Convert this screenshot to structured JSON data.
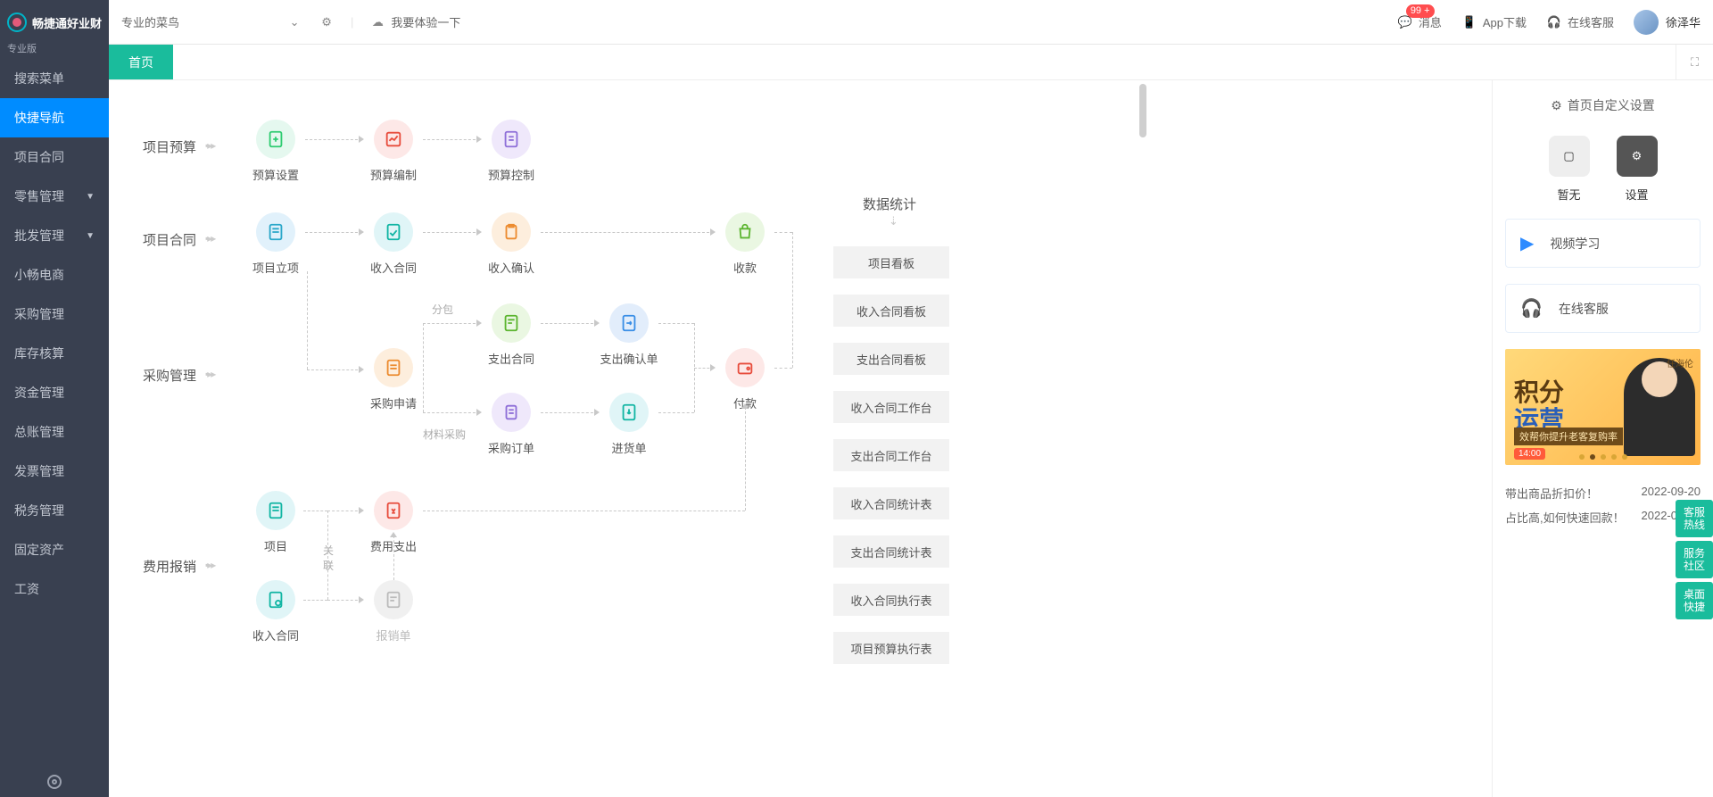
{
  "brand": {
    "name": "畅捷通好业财",
    "edition": "专业版"
  },
  "topbar": {
    "selector": "专业的菜鸟",
    "experience": "我要体验一下",
    "msg": "消息",
    "msg_badge": "99 +",
    "app": "App下载",
    "cs": "在线客服",
    "user": "徐泽华"
  },
  "sidebar": {
    "items": [
      {
        "label": "搜索菜单",
        "chev": false
      },
      {
        "label": "快捷导航",
        "chev": false,
        "active": true
      },
      {
        "label": "项目合同",
        "chev": false
      },
      {
        "label": "零售管理",
        "chev": true
      },
      {
        "label": "批发管理",
        "chev": true
      },
      {
        "label": "小畅电商",
        "chev": false
      },
      {
        "label": "采购管理",
        "chev": false
      },
      {
        "label": "库存核算",
        "chev": false
      },
      {
        "label": "资金管理",
        "chev": false
      },
      {
        "label": "总账管理",
        "chev": false
      },
      {
        "label": "发票管理",
        "chev": false
      },
      {
        "label": "税务管理",
        "chev": false
      },
      {
        "label": "固定资产",
        "chev": false
      },
      {
        "label": "工资",
        "chev": false
      }
    ]
  },
  "tab": {
    "home": "首页"
  },
  "flow": {
    "section1": "项目预算",
    "section2": "项目合同",
    "section3": "采购管理",
    "section4": "费用报销",
    "n_budget_set": "预算设置",
    "n_budget_make": "预算编制",
    "n_budget_ctrl": "预算控制",
    "n_proj_new": "项目立项",
    "n_income_ct": "收入合同",
    "n_income_ok": "收入确认",
    "n_recv": "收款",
    "n_expense_ct": "支出合同",
    "n_expense_ok": "支出确认单",
    "n_purch_req": "采购申请",
    "n_purch_order": "采购订单",
    "n_stockin": "进货单",
    "n_pay": "付款",
    "n_project": "项目",
    "n_expense_out": "费用支出",
    "n_income_ct2": "收入合同",
    "n_reimb": "报销单",
    "sub_fenbao": "分包",
    "sub_material": "材料采购",
    "sub_relation": "关\n联",
    "stats_title": "数据统计",
    "stats": [
      "项目看板",
      "收入合同看板",
      "支出合同看板",
      "收入合同工作台",
      "支出合同工作台",
      "收入合同统计表",
      "支出合同统计表",
      "收入合同执行表",
      "项目预算执行表"
    ]
  },
  "right": {
    "title": "首页自定义设置",
    "block_none": "暂无",
    "block_set": "设置",
    "quick_video": "视频学习",
    "quick_cs": "在线客服",
    "promo_big1": "积分",
    "promo_big2": "运营",
    "promo_sub": "效帮你提升老客复购率",
    "promo_time": "14:00",
    "promo_name": "任海伦",
    "news": [
      {
        "t": "带出商品折扣价！",
        "d": "2022-09-20"
      },
      {
        "t": "占比高,如何快速回款！",
        "d": "2022-09-20"
      }
    ]
  },
  "float": {
    "a": "客服\n热线",
    "b": "服务\n社区",
    "c": "桌面\n快捷"
  },
  "colors": {
    "sidebar_bg": "#394050",
    "active": "#008cff",
    "teal": "#1abc9c",
    "green": "#2ecc71",
    "red": "#e74c3c",
    "purple": "#8e6fd8",
    "orange": "#ec8b2f",
    "cyan": "#2aa7c9",
    "blue": "#3a8ee6",
    "gray": "#c0c0c0"
  }
}
